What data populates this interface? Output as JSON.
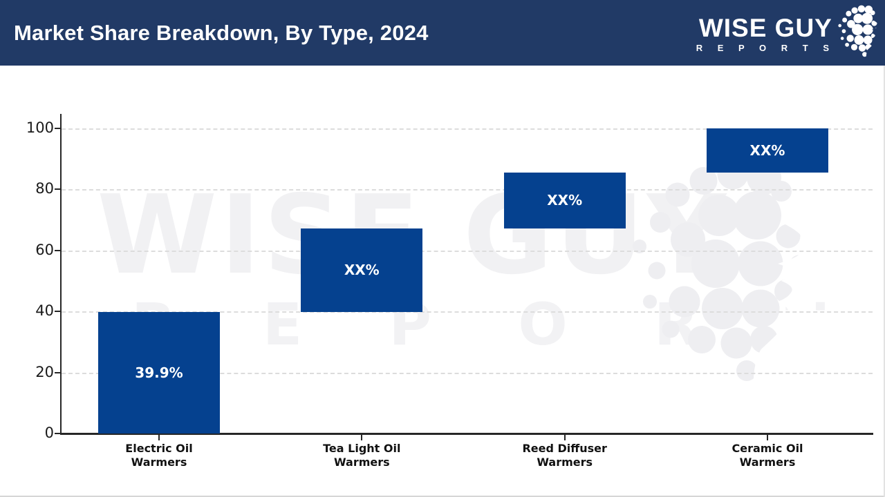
{
  "header": {
    "title": "Market Share Breakdown, By Type, 2024",
    "logo": {
      "line1": "WISE GUY",
      "line2": "R E P O R T S"
    }
  },
  "watermark": {
    "line1": "WISE GUY",
    "line2": "R E P O R T S"
  },
  "colors": {
    "header_bg": "#213a66",
    "bar": "#05418f",
    "bar_label": "#ffffff",
    "grid": "#dcdcdc",
    "axis": "#262626",
    "watermark": "#f1f1f3"
  },
  "chart_data": {
    "type": "bar",
    "subtype": "floating-segment-waterfall",
    "title": "Market Share Breakdown, By Type, 2024",
    "categories": [
      "Electric Oil\nWarmers",
      "Tea Light Oil\nWarmers",
      "Reed Diffuser\nWarmers",
      "Ceramic Oil\nWarmers"
    ],
    "segments": [
      {
        "category": "Electric Oil Warmers",
        "start": 0,
        "end": 39.9,
        "label": "39.9%"
      },
      {
        "category": "Tea Light Oil Warmers",
        "start": 39.9,
        "end": 67.2,
        "label": "XX%"
      },
      {
        "category": "Reed Diffuser Warmers",
        "start": 67.2,
        "end": 85.6,
        "label": "XX%"
      },
      {
        "category": "Ceramic Oil Warmers",
        "start": 85.6,
        "end": 100,
        "label": "XX%"
      }
    ],
    "xlabel": "",
    "ylabel": "",
    "ylim": [
      0,
      100
    ],
    "yticks": [
      0,
      20,
      40,
      60,
      80,
      100
    ],
    "grid": "horizontal-dashed",
    "legend": "none"
  }
}
